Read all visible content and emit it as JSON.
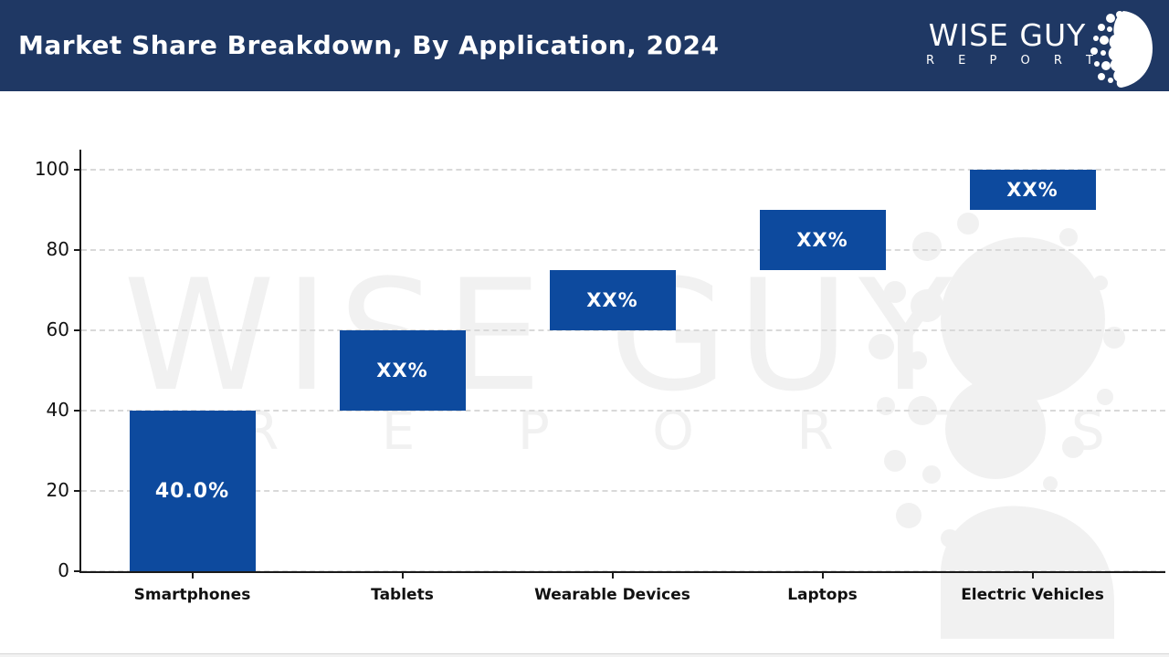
{
  "header": {
    "logo": {
      "line1": "WISE GUY",
      "line2": "R E P O R T S"
    },
    "bg_color": "#1f3864"
  },
  "watermark": {
    "line1": "WISE GUY",
    "line2": "R E P O R T S"
  },
  "chart_data": {
    "type": "bar",
    "subtype": "waterfall-floating-bars",
    "title": "Market Share Breakdown, By Application, 2024",
    "categories": [
      "Smartphones",
      "Tablets",
      "Wearable Devices",
      "Laptops",
      "Electric Vehicles"
    ],
    "segments": [
      {
        "category": "Smartphones",
        "start": 0,
        "end": 40,
        "label": "40.0%"
      },
      {
        "category": "Tablets",
        "start": 40,
        "end": 60,
        "label": "XX%"
      },
      {
        "category": "Wearable Devices",
        "start": 60,
        "end": 75,
        "label": "XX%"
      },
      {
        "category": "Laptops",
        "start": 75,
        "end": 90,
        "label": "XX%"
      },
      {
        "category": "Electric Vehicles",
        "start": 90,
        "end": 100,
        "label": "XX%"
      }
    ],
    "yticks": [
      0,
      20,
      40,
      60,
      80,
      100
    ],
    "ylim": [
      0,
      105
    ],
    "xlabel": "",
    "ylabel": "",
    "bar_color": "#0d4a9e",
    "grid": "horizontal-dashed",
    "legend": "none"
  }
}
